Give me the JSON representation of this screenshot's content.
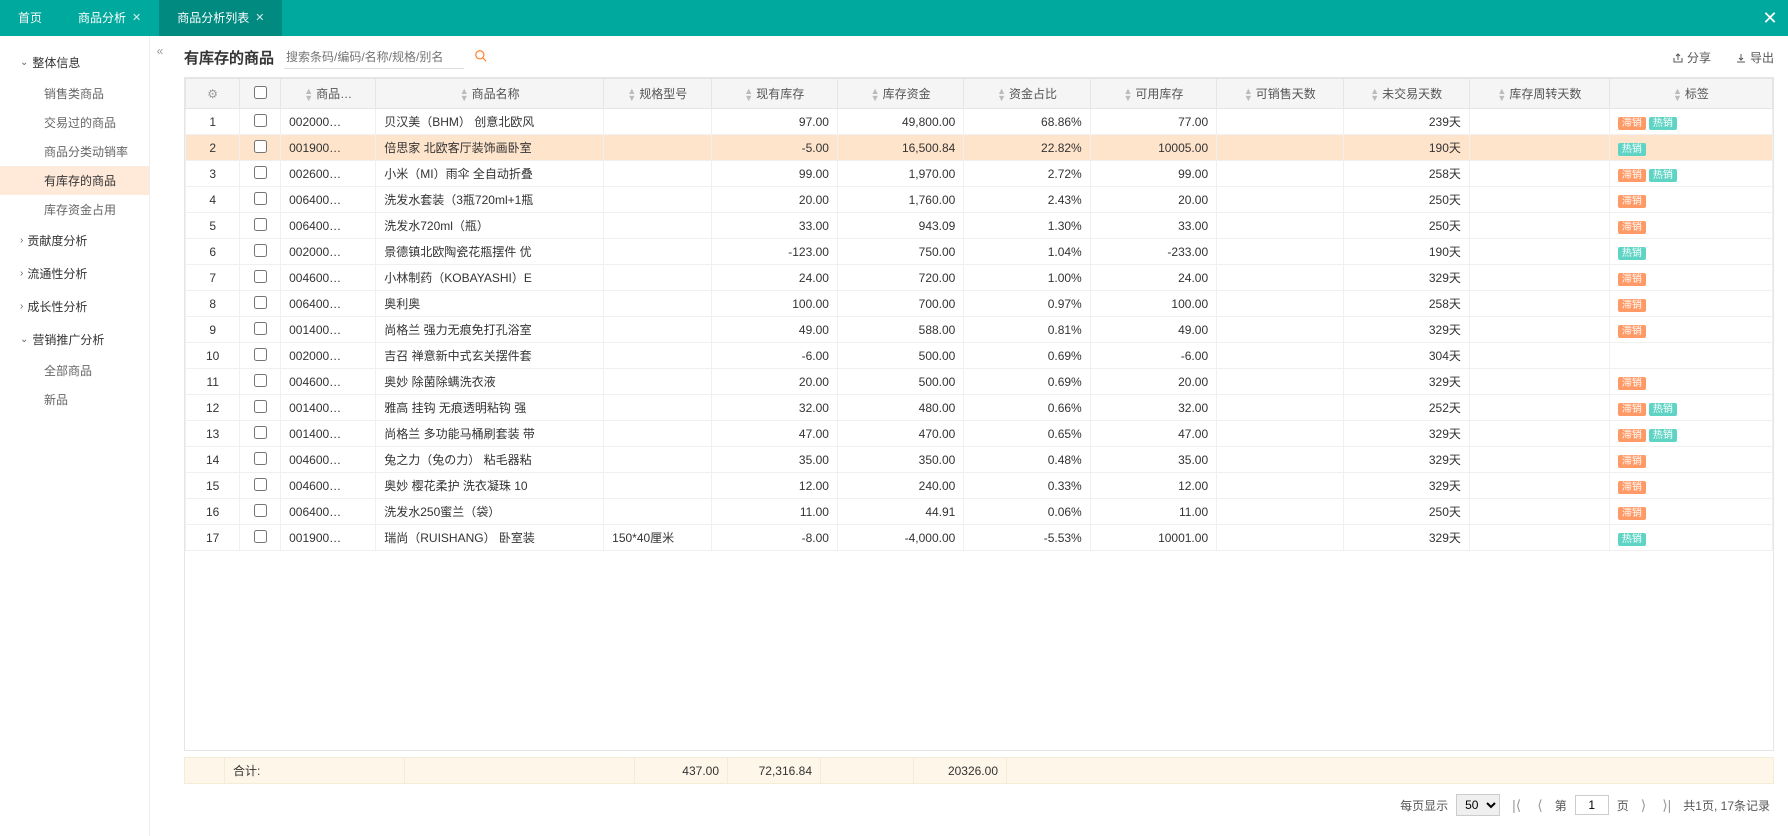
{
  "tabs": [
    {
      "label": "首页",
      "closable": false,
      "active": false
    },
    {
      "label": "商品分析",
      "closable": true,
      "active": false
    },
    {
      "label": "商品分析列表",
      "closable": true,
      "active": true
    }
  ],
  "sidebar": {
    "groups": [
      {
        "label": "整体信息",
        "open": true,
        "items": [
          {
            "label": "销售类商品"
          },
          {
            "label": "交易过的商品"
          },
          {
            "label": "商品分类动销率"
          },
          {
            "label": "有库存的商品",
            "active": true
          },
          {
            "label": "库存资金占用"
          }
        ]
      },
      {
        "label": "贡献度分析",
        "open": false,
        "items": []
      },
      {
        "label": "流通性分析",
        "open": false,
        "items": []
      },
      {
        "label": "成长性分析",
        "open": false,
        "items": []
      },
      {
        "label": "营销推广分析",
        "open": true,
        "items": [
          {
            "label": "全部商品"
          },
          {
            "label": "新品"
          }
        ]
      }
    ]
  },
  "page": {
    "title": "有库存的商品",
    "search_placeholder": "搜索条码/编码/名称/规格/别名",
    "share": "分享",
    "export": "导出"
  },
  "columns": [
    "",
    "",
    "商品…",
    "商品名称",
    "规格型号",
    "现有库存",
    "库存资金",
    "资金占比",
    "可用库存",
    "可销售天数",
    "未交易天数",
    "库存周转天数",
    "标签"
  ],
  "rows": [
    {
      "n": 1,
      "code": "002000…",
      "name": "贝汉美（BHM） 创意北欧风",
      "spec": "",
      "stock": "97.00",
      "fund": "49,800.00",
      "pct": "68.86%",
      "avail": "77.00",
      "sale": "",
      "idle": "239天",
      "turn": "",
      "tags": [
        "滞销",
        "热销"
      ]
    },
    {
      "n": 2,
      "code": "001900…",
      "name": "倍思家 北欧客厅装饰画卧室",
      "spec": "",
      "stock": "-5.00",
      "fund": "16,500.84",
      "pct": "22.82%",
      "avail": "10005.00",
      "sale": "",
      "idle": "190天",
      "turn": "",
      "tags": [
        "热销"
      ],
      "hi": true
    },
    {
      "n": 3,
      "code": "002600…",
      "name": "小米（MI）雨伞 全自动折叠",
      "spec": "",
      "stock": "99.00",
      "fund": "1,970.00",
      "pct": "2.72%",
      "avail": "99.00",
      "sale": "",
      "idle": "258天",
      "turn": "",
      "tags": [
        "滞销",
        "热销"
      ]
    },
    {
      "n": 4,
      "code": "006400…",
      "name": "洗发水套装（3瓶720ml+1瓶",
      "spec": "",
      "stock": "20.00",
      "fund": "1,760.00",
      "pct": "2.43%",
      "avail": "20.00",
      "sale": "",
      "idle": "250天",
      "turn": "",
      "tags": [
        "滞销"
      ]
    },
    {
      "n": 5,
      "code": "006400…",
      "name": "洗发水720ml（瓶）",
      "spec": "",
      "stock": "33.00",
      "fund": "943.09",
      "pct": "1.30%",
      "avail": "33.00",
      "sale": "",
      "idle": "250天",
      "turn": "",
      "tags": [
        "滞销"
      ]
    },
    {
      "n": 6,
      "code": "002000…",
      "name": "景德镇北欧陶瓷花瓶摆件 优",
      "spec": "",
      "stock": "-123.00",
      "fund": "750.00",
      "pct": "1.04%",
      "avail": "-233.00",
      "sale": "",
      "idle": "190天",
      "turn": "",
      "tags": [
        "热销"
      ]
    },
    {
      "n": 7,
      "code": "004600…",
      "name": "小林制药（KOBAYASHI）E",
      "spec": "",
      "stock": "24.00",
      "fund": "720.00",
      "pct": "1.00%",
      "avail": "24.00",
      "sale": "",
      "idle": "329天",
      "turn": "",
      "tags": [
        "滞销"
      ]
    },
    {
      "n": 8,
      "code": "006400…",
      "name": "奥利奥",
      "spec": "",
      "stock": "100.00",
      "fund": "700.00",
      "pct": "0.97%",
      "avail": "100.00",
      "sale": "",
      "idle": "258天",
      "turn": "",
      "tags": [
        "滞销"
      ]
    },
    {
      "n": 9,
      "code": "001400…",
      "name": "尚格兰 强力无痕免打孔浴室",
      "spec": "",
      "stock": "49.00",
      "fund": "588.00",
      "pct": "0.81%",
      "avail": "49.00",
      "sale": "",
      "idle": "329天",
      "turn": "",
      "tags": [
        "滞销"
      ]
    },
    {
      "n": 10,
      "code": "002000…",
      "name": "吉召 禅意新中式玄关摆件套",
      "spec": "",
      "stock": "-6.00",
      "fund": "500.00",
      "pct": "0.69%",
      "avail": "-6.00",
      "sale": "",
      "idle": "304天",
      "turn": "",
      "tags": []
    },
    {
      "n": 11,
      "code": "004600…",
      "name": "奥妙 除菌除螨洗衣液",
      "spec": "",
      "stock": "20.00",
      "fund": "500.00",
      "pct": "0.69%",
      "avail": "20.00",
      "sale": "",
      "idle": "329天",
      "turn": "",
      "tags": [
        "滞销"
      ]
    },
    {
      "n": 12,
      "code": "001400…",
      "name": "雅高 挂钩 无痕透明粘钩 强",
      "spec": "",
      "stock": "32.00",
      "fund": "480.00",
      "pct": "0.66%",
      "avail": "32.00",
      "sale": "",
      "idle": "252天",
      "turn": "",
      "tags": [
        "滞销",
        "热销"
      ]
    },
    {
      "n": 13,
      "code": "001400…",
      "name": "尚格兰 多功能马桶刷套装 带",
      "spec": "",
      "stock": "47.00",
      "fund": "470.00",
      "pct": "0.65%",
      "avail": "47.00",
      "sale": "",
      "idle": "329天",
      "turn": "",
      "tags": [
        "滞销",
        "热销"
      ]
    },
    {
      "n": 14,
      "code": "004600…",
      "name": "兔之力（兔の力） 粘毛器粘",
      "spec": "",
      "stock": "35.00",
      "fund": "350.00",
      "pct": "0.48%",
      "avail": "35.00",
      "sale": "",
      "idle": "329天",
      "turn": "",
      "tags": [
        "滞销"
      ]
    },
    {
      "n": 15,
      "code": "004600…",
      "name": "奥妙 樱花柔护 洗衣凝珠 10",
      "spec": "",
      "stock": "12.00",
      "fund": "240.00",
      "pct": "0.33%",
      "avail": "12.00",
      "sale": "",
      "idle": "329天",
      "turn": "",
      "tags": [
        "滞销"
      ]
    },
    {
      "n": 16,
      "code": "006400…",
      "name": "洗发水250蜜兰（袋）",
      "spec": "",
      "stock": "11.00",
      "fund": "44.91",
      "pct": "0.06%",
      "avail": "11.00",
      "sale": "",
      "idle": "250天",
      "turn": "",
      "tags": [
        "滞销"
      ]
    },
    {
      "n": 17,
      "code": "001900…",
      "name": "瑞尚（RUISHANG） 卧室装",
      "spec": "150*40厘米",
      "stock": "-8.00",
      "fund": "-4,000.00",
      "pct": "-5.53%",
      "avail": "10001.00",
      "sale": "",
      "idle": "329天",
      "turn": "",
      "tags": [
        "热销"
      ]
    }
  ],
  "sum": {
    "label": "合计:",
    "stock": "437.00",
    "fund": "72,316.84",
    "avail": "20326.00"
  },
  "pager": {
    "per_label": "每页显示",
    "per": "50",
    "page_pre": "第",
    "page": "1",
    "page_suf": "页",
    "info": "共1页, 17条记录"
  }
}
